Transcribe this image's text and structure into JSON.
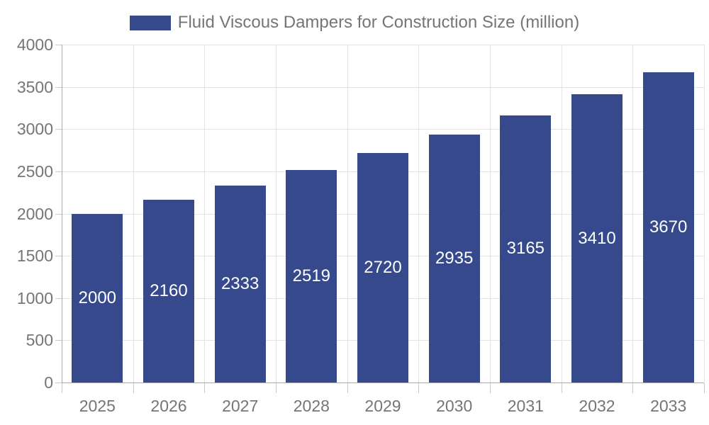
{
  "legend": {
    "label": "Fluid Viscous Dampers for Construction Size (million)"
  },
  "chart_data": {
    "type": "bar",
    "title": "Fluid Viscous Dampers for Construction Size (million)",
    "series_name": "Fluid Viscous Dampers for Construction Size (million)",
    "categories": [
      "2025",
      "2026",
      "2027",
      "2028",
      "2029",
      "2030",
      "2031",
      "2032",
      "2033"
    ],
    "values": [
      2000,
      2160,
      2333,
      2519,
      2720,
      2935,
      3165,
      3410,
      3670
    ],
    "value_labels": [
      "2000",
      "2160",
      "2333",
      "2519",
      "2720",
      "2935",
      "3165",
      "3410",
      "3670"
    ],
    "xlabel": "",
    "ylabel": "",
    "ylim": [
      0,
      4000
    ],
    "yticks": [
      0,
      500,
      1000,
      1500,
      2000,
      2500,
      3000,
      3500,
      4000
    ],
    "grid": true,
    "legend_position": "top-center",
    "value_label_position": "inside-middle",
    "colors": {
      "bar": "#36498D",
      "value_text": "#FFFFFF",
      "axis_text": "#757575",
      "legend_text": "#757575",
      "axis_line": "#AAAAAA",
      "tick_line": "#C9C9C9",
      "gridline": "#E3E3E3",
      "background": "#FFFFFF"
    }
  }
}
